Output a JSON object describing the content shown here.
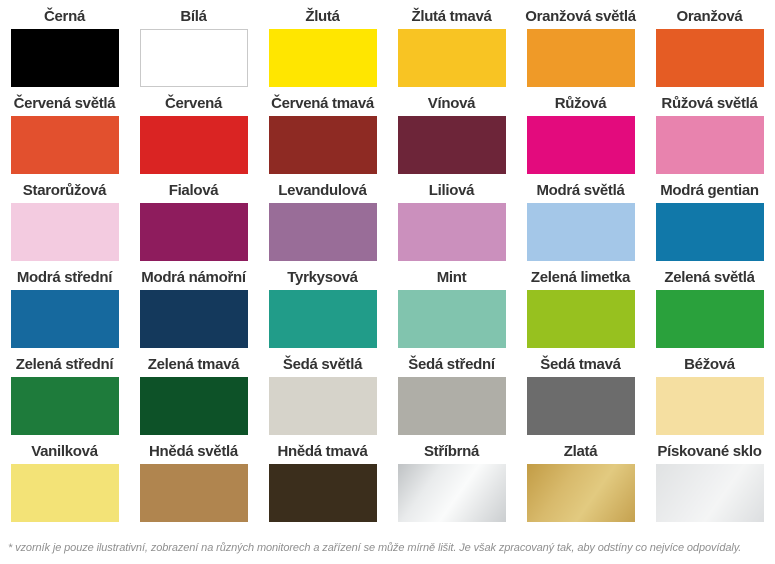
{
  "palette": {
    "swatches": [
      {
        "name": "Černá",
        "background": "#000000"
      },
      {
        "name": "Bílá",
        "background": "#ffffff",
        "border": "#c9c9c9"
      },
      {
        "name": "Žlutá",
        "background": "#ffe600"
      },
      {
        "name": "Žlutá tmavá",
        "background": "#f8c423"
      },
      {
        "name": "Oranžová světlá",
        "background": "#ef9a28"
      },
      {
        "name": "Oranžová",
        "background": "#e55c24"
      },
      {
        "name": "Červená světlá",
        "background": "#e2502e"
      },
      {
        "name": "Červená",
        "background": "#da2423"
      },
      {
        "name": "Červená tmavá",
        "background": "#8e2a23"
      },
      {
        "name": "Vínová",
        "background": "#6d2539"
      },
      {
        "name": "Růžová",
        "background": "#e30b7d"
      },
      {
        "name": "Růžová světlá",
        "background": "#e883ae"
      },
      {
        "name": "Starorůžová",
        "background": "#f3cbe0"
      },
      {
        "name": "Fialová",
        "background": "#8e1c5d"
      },
      {
        "name": "Levandulová",
        "background": "#996d98"
      },
      {
        "name": "Liliová",
        "background": "#cb90bd"
      },
      {
        "name": "Modrá světlá",
        "background": "#a4c7e8"
      },
      {
        "name": "Modrá gentian",
        "background": "#1178a9"
      },
      {
        "name": "Modrá střední",
        "background": "#16699e"
      },
      {
        "name": "Modrá námořní",
        "background": "#14395c"
      },
      {
        "name": "Tyrkysová",
        "background": "#219c89"
      },
      {
        "name": "Mint",
        "background": "#81c4ae"
      },
      {
        "name": "Zelená limetka",
        "background": "#97c11f"
      },
      {
        "name": "Zelená světlá",
        "background": "#2aa13c"
      },
      {
        "name": "Zelená střední",
        "background": "#1e7b3b"
      },
      {
        "name": "Zelená tmavá",
        "background": "#0d5228"
      },
      {
        "name": "Šedá světlá",
        "background": "#d6d3ca"
      },
      {
        "name": "Šedá střední",
        "background": "#afaea7"
      },
      {
        "name": "Šedá tmavá",
        "background": "#6c6c6c"
      },
      {
        "name": "Béžová",
        "background": "#f5dfa1"
      },
      {
        "name": "Vanilková",
        "background": "#f3e377"
      },
      {
        "name": "Hnědá světlá",
        "background": "#b0854f"
      },
      {
        "name": "Hnědá tmavá",
        "background": "#3b2e1c"
      },
      {
        "name": "Stříbrná",
        "background": "linear-gradient(125deg, #bfc2c4 0%, #e9ebec 30%, #fafbfb 55%, #cbced0 100%)"
      },
      {
        "name": "Zlatá",
        "background": "linear-gradient(125deg, #c29c45 0%, #d8ba6c 35%, #e2ca80 60%, #c5a14f 100%)"
      },
      {
        "name": "Pískované sklo",
        "background": "linear-gradient(125deg, #e0e2e3 0%, #eff0f1 45%, #f4f5f5 60%, #dcdee0 100%)"
      }
    ]
  },
  "footnote": "* vzorník je pouze ilustrativní, zobrazení na různých monitorech a zařízení se může mírně lišit. Je však zpracovaný tak, aby odstíny co nejvíce odpovídaly."
}
